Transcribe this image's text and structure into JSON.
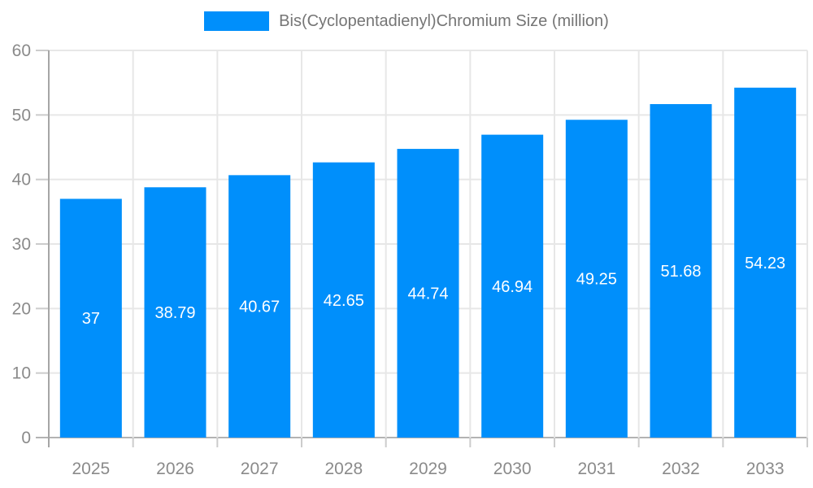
{
  "chart_data": {
    "type": "bar",
    "legend": "Bis(Cyclopentadienyl)Chromium Size (million)",
    "categories": [
      "2025",
      "2026",
      "2027",
      "2028",
      "2029",
      "2030",
      "2031",
      "2032",
      "2033"
    ],
    "values": [
      37,
      38.79,
      40.67,
      42.65,
      44.74,
      46.94,
      49.25,
      51.68,
      54.23
    ],
    "value_labels": [
      "37",
      "38.79",
      "40.67",
      "42.65",
      "44.74",
      "46.94",
      "49.25",
      "51.68",
      "54.23"
    ],
    "xlabel": "",
    "ylabel": "",
    "ylim": [
      0,
      60
    ],
    "yticks": [
      0,
      10,
      20,
      30,
      40,
      50,
      60
    ],
    "grid": "horizontal-and-vertical",
    "legend_position": "top-center",
    "colors": {
      "bar": "#008FFB",
      "bar_value_text": "#ffffff",
      "axis_tick_text": "#8a8a8a",
      "legend_text": "#757575",
      "gridline": "#e7e7e7",
      "axis_line": "#a6a6a6",
      "baseline": "#b3b3b3",
      "tick_mark": "#cccccc",
      "background": "#ffffff"
    }
  }
}
